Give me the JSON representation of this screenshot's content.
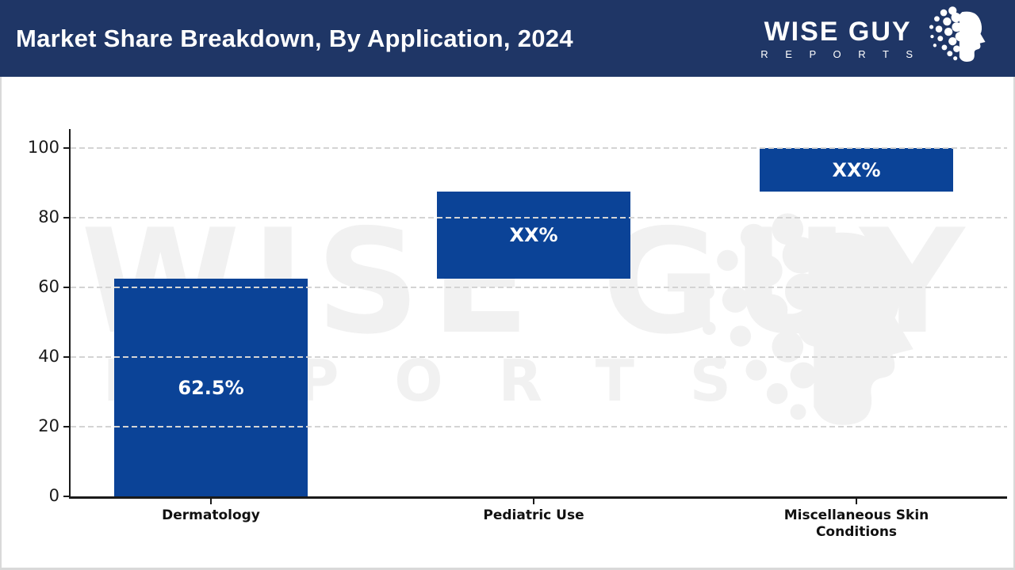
{
  "header": {
    "title": "Market Share Breakdown, By Application, 2024",
    "bg_color": "#1f3666",
    "logo": {
      "line1": "WISE GUY",
      "line2": "R E P O R T S"
    }
  },
  "watermark": {
    "line1": "WISE GUY",
    "line2": "REPORTS"
  },
  "chart_data": {
    "type": "bar",
    "subtype": "waterfall-segments",
    "title": "Market Share Breakdown, By Application, 2024",
    "categories": [
      "Dermatology",
      "Pediatric Use",
      "Miscellaneous Skin Conditions"
    ],
    "bars": [
      {
        "category": "Dermatology",
        "start": 0,
        "end": 62.5,
        "label": "62.5%"
      },
      {
        "category": "Pediatric Use",
        "start": 62.5,
        "end": 87.5,
        "label": "XX%"
      },
      {
        "category": "Miscellaneous Skin Conditions",
        "start": 87.5,
        "end": 100,
        "label": "XX%"
      }
    ],
    "yticks": [
      0,
      20,
      40,
      60,
      80,
      100
    ],
    "ylim": [
      0,
      105
    ],
    "xlabel": "",
    "ylabel": "",
    "legend": "none",
    "grid": {
      "horizontal": true,
      "style": "dashed",
      "color": "#d4d4d4"
    },
    "bar_color": "#0b4397",
    "bar_label_color": "#ffffff",
    "axis_color": "#1a1a1a"
  }
}
